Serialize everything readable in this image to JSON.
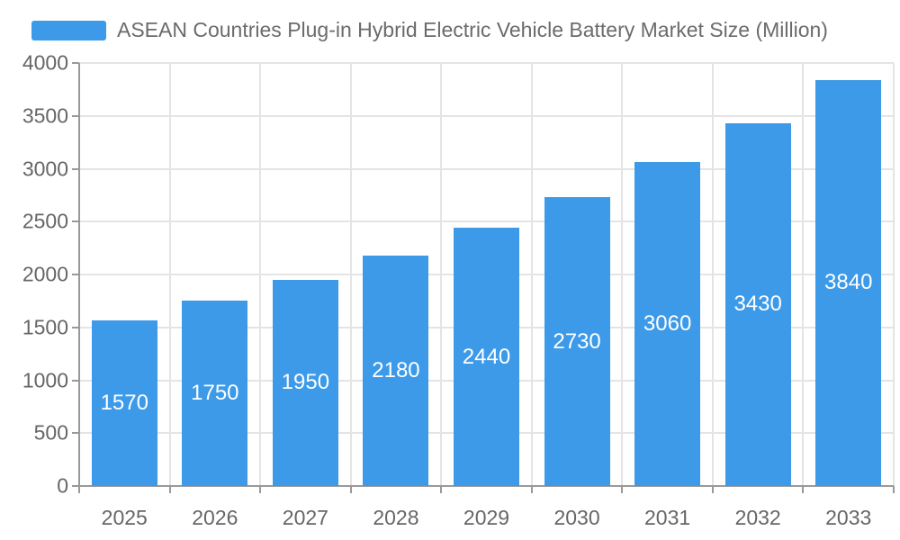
{
  "legend": {
    "label": "ASEAN Countries Plug-in Hybrid Electric Vehicle Battery Market Size (Million)"
  },
  "colors": {
    "bar": "#3d9ae8",
    "axis_line": "#999999",
    "grid_line": "#e4e4e4",
    "axis_text": "#666666",
    "bar_label_text": "#ffffff",
    "background": "#ffffff"
  },
  "chart_data": {
    "type": "bar",
    "title": "ASEAN Countries Plug-in Hybrid Electric Vehicle Battery Market Size (Million)",
    "categories": [
      "2025",
      "2026",
      "2027",
      "2028",
      "2029",
      "2030",
      "2031",
      "2032",
      "2033"
    ],
    "values": [
      1570,
      1750,
      1950,
      2180,
      2440,
      2730,
      3060,
      3430,
      3840
    ],
    "xlabel": "",
    "ylabel": "",
    "ylim": [
      0,
      4000
    ],
    "yticks": [
      0,
      500,
      1000,
      1500,
      2000,
      2500,
      3000,
      3500,
      4000
    ],
    "grid": true,
    "legend_position": "top-left",
    "value_label_position": "inside-center"
  }
}
